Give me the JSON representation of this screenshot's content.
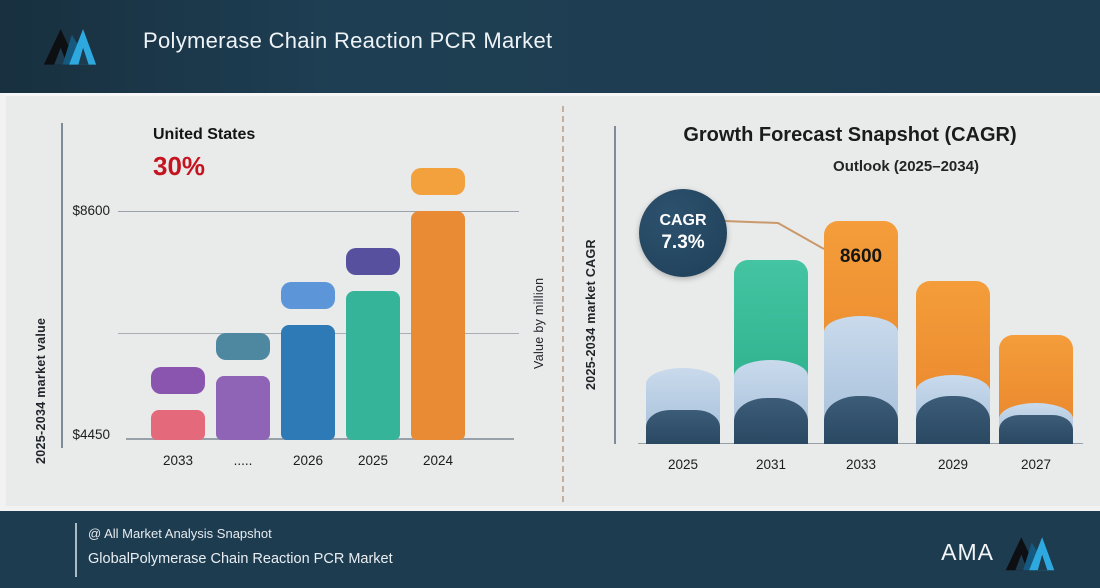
{
  "header": {
    "title": "Polymerase Chain Reaction PCR Market",
    "logo": "ama-mountains-logo"
  },
  "footer": {
    "line1": "@ All Market Analysis Snapshot",
    "line2": "GlobalPolymerase Chain Reaction PCR Market",
    "brand": "AMA"
  },
  "colors": {
    "header_bg": "#1d3c50",
    "content_bg": "#e9eaea",
    "accent_red": "#c41420",
    "badge_navy": "#24455e",
    "logo_blue": "#2ea9e0",
    "connector_tan": "#c9996b"
  },
  "chart_data": [
    {
      "type": "bar",
      "panel": "left",
      "title": "United States",
      "highlight_value": "30%",
      "ylabel": "2025-2034 market value",
      "ylabel_secondary": "Value by million",
      "ytick_top": "$8600",
      "ytick_bottom": "$4450",
      "ylim": [
        4450,
        8600
      ],
      "grid": true,
      "categories": [
        "2033",
        ".....",
        "2026",
        "2025",
        "2024"
      ],
      "values": [
        5000,
        5610,
        6530,
        7150,
        8600
      ],
      "bar_colors": [
        "#e4697b",
        "#8f63b6",
        "#2d7ab6",
        "#36b49a",
        "#e98b35"
      ],
      "cap_colors": [
        "#8a55ae",
        "#4d87a0",
        "#5d95d9",
        "#57509f",
        "#f2a13d"
      ]
    },
    {
      "type": "stacked-bar",
      "panel": "right",
      "title": "Growth Forecast Snapshot (CAGR)",
      "subtitle": "Outlook (2025–2034)",
      "ylabel": "2025-2034 market CAGR",
      "badge": {
        "label": "CAGR",
        "value": "7.3%"
      },
      "annotation": {
        "text": "8600",
        "category": "2033"
      },
      "categories": [
        "2025",
        "2031",
        "2033",
        "2029",
        "2027"
      ],
      "series": [
        {
          "name": "base",
          "color": "#2d4c66",
          "values": [
            34,
            46,
            48,
            48,
            29
          ]
        },
        {
          "name": "middle",
          "color": "#b7cde5",
          "values": [
            42,
            38,
            80,
            21,
            12
          ]
        },
        {
          "name": "top",
          "color": "#ee8e2f",
          "colors": [
            "",
            "#2eb893",
            "#ee8e2f",
            "#ee8e2f",
            "#ee8e2f"
          ],
          "values": [
            0,
            100,
            95,
            94,
            68
          ]
        }
      ],
      "value_unit": "relative height (no axis scale shown)"
    }
  ]
}
